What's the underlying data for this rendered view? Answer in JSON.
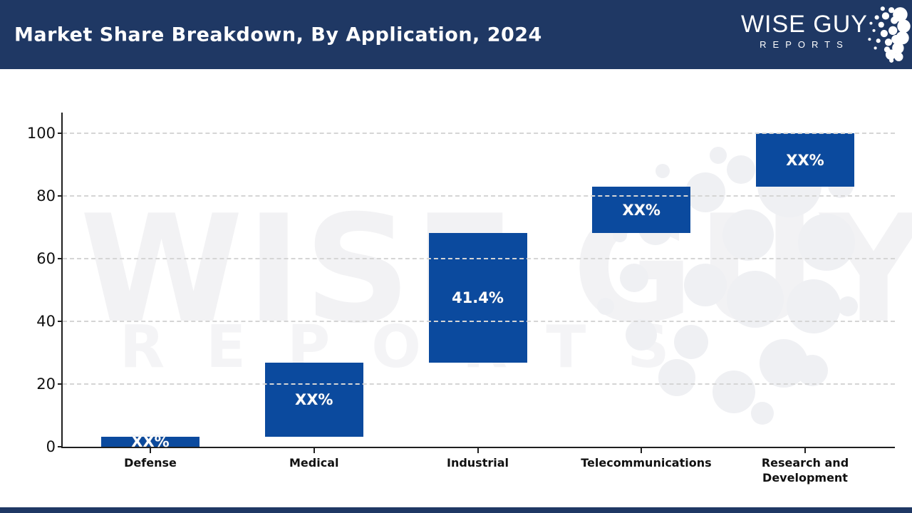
{
  "header": {
    "title": "Market Share Breakdown, By Application, 2024",
    "logo": {
      "line1": "WISE GUY",
      "line2": "REPORTS"
    }
  },
  "watermark": {
    "line1": "WISE GUY",
    "line2": "REPORTS"
  },
  "colors": {
    "header_bg": "#1f3864",
    "footer_bg": "#1f3864",
    "bar": "#0b4a9e",
    "grid": "#d5d5d5",
    "axis": "#1f1f1f",
    "bar_label_text": "#ffffff",
    "watermark_text": "#f2f2f4"
  },
  "chart_data": {
    "type": "bar",
    "subtype": "waterfall",
    "title": "Market Share Breakdown, By Application, 2024",
    "categories": [
      "Defense",
      "Medical",
      "Industrial",
      "Telecommunications",
      "Research and Development"
    ],
    "bars": [
      {
        "category": "Defense",
        "start": 0,
        "end": 3.2,
        "label": "XX%"
      },
      {
        "category": "Medical",
        "start": 3.2,
        "end": 26.8,
        "label": "XX%"
      },
      {
        "category": "Industrial",
        "start": 26.8,
        "end": 68.2,
        "label": "41.4%"
      },
      {
        "category": "Telecommunications",
        "start": 68.2,
        "end": 82.9,
        "label": "XX%"
      },
      {
        "category": "Research and Development",
        "start": 82.9,
        "end": 100,
        "label": "XX%"
      }
    ],
    "yticks": [
      0,
      20,
      40,
      60,
      80,
      100
    ],
    "ylim": [
      0,
      107
    ],
    "grid": "horizontal-dashed",
    "legend": "none",
    "bar_color": "#0b4a9e"
  }
}
